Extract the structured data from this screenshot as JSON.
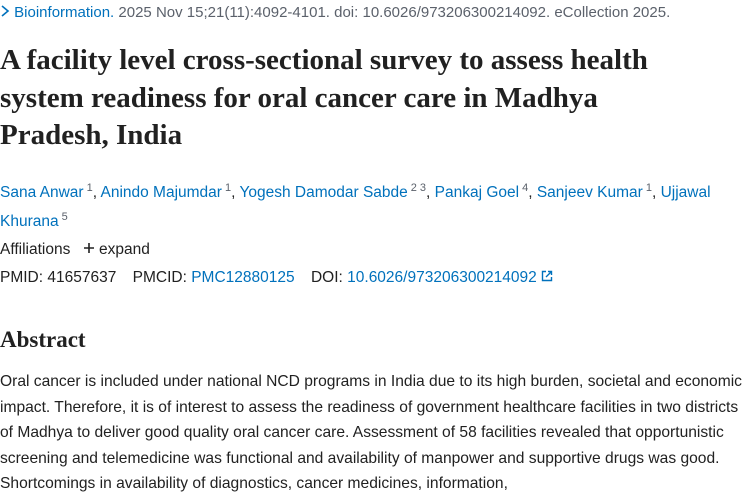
{
  "citation": {
    "journal": "Bioinformation.",
    "details": "2025 Nov 15;21(11):4092-4101. doi: 10.6026/973206300214092. eCollection 2025."
  },
  "title": "A facility level cross-sectional survey to assess health system readiness for oral cancer care in Madhya Pradesh, India",
  "authors": [
    {
      "name": "Sana Anwar",
      "affiliations": [
        "1"
      ]
    },
    {
      "name": "Anindo Majumdar",
      "affiliations": [
        "1"
      ]
    },
    {
      "name": "Yogesh Damodar Sabde",
      "affiliations": [
        "2",
        "3"
      ]
    },
    {
      "name": "Pankaj Goel",
      "affiliations": [
        "4"
      ]
    },
    {
      "name": "Sanjeev Kumar",
      "affiliations": [
        "1"
      ]
    },
    {
      "name": "Ujjawal Khurana",
      "affiliations": [
        "5"
      ]
    }
  ],
  "authors_separator": ",",
  "affiliations": {
    "label": "Affiliations",
    "toggle": "expand"
  },
  "identifiers": {
    "pmid_label": "PMID:",
    "pmid": "41657637",
    "pmcid_label": "PMCID:",
    "pmcid": "PMC12880125",
    "doi_label": "DOI:",
    "doi": "10.6026/973206300214092"
  },
  "abstract": {
    "heading": "Abstract",
    "text": "Oral cancer is included under national NCD programs in India due to its high burden, societal and economic impact. Therefore, it is of interest to assess the readiness of government healthcare facilities in two districts of Madhya to deliver good quality oral cancer care. Assessment of 58 facilities revealed that opportunistic screening and telemedicine was functional and availability of manpower and supportive drugs was good. Shortcomings in availability of diagnostics, cancer medicines, information,"
  }
}
